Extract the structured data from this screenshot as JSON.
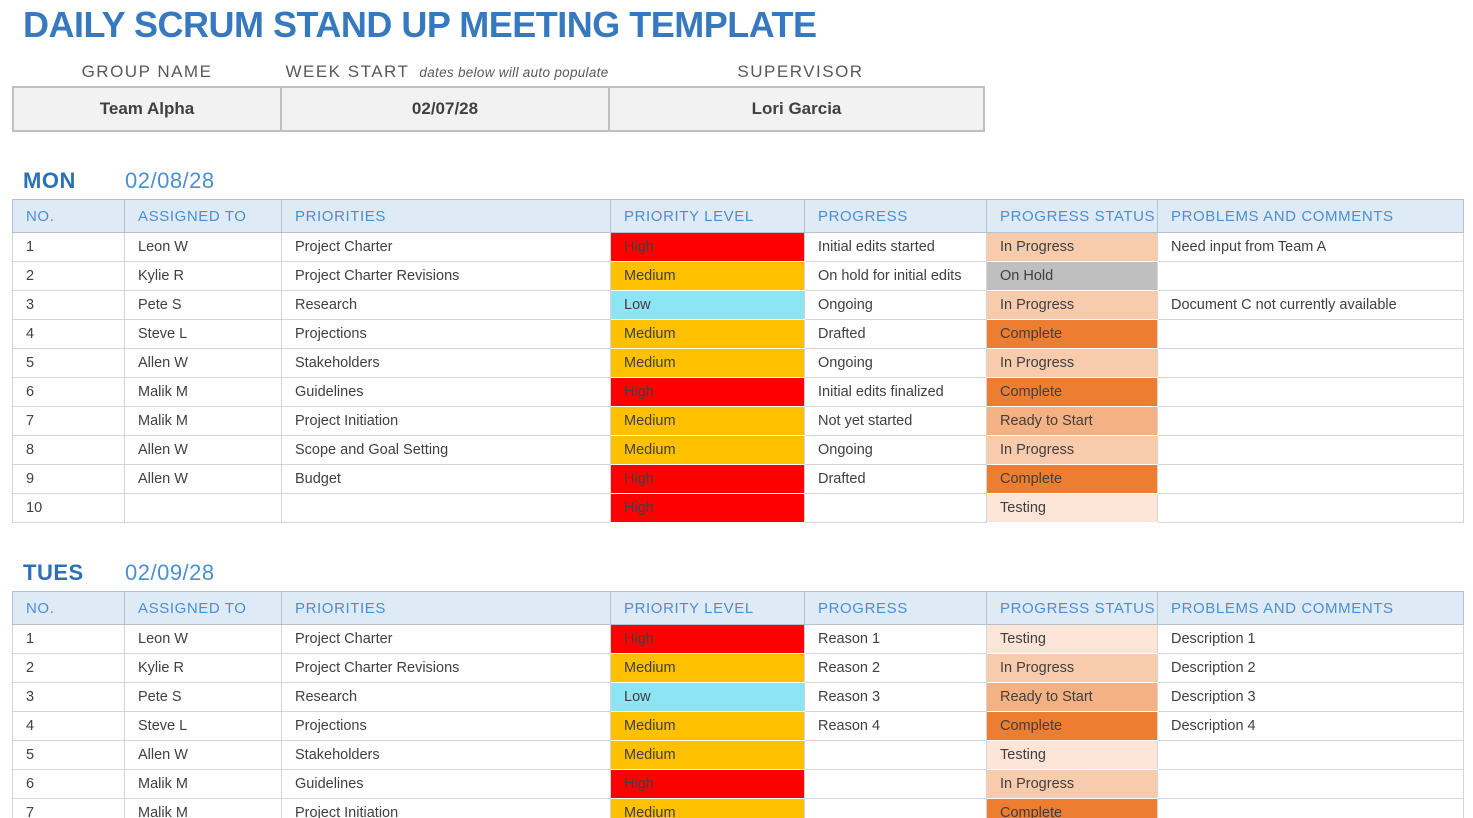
{
  "page": {
    "title": "DAILY SCRUM STAND UP MEETING TEMPLATE"
  },
  "info": {
    "group": {
      "label": "GROUP NAME",
      "value": "Team Alpha"
    },
    "week": {
      "label": "WEEK START",
      "note": "dates below will auto populate",
      "value": "02/07/28"
    },
    "supervisor": {
      "label": "SUPERVISOR",
      "value": "Lori Garcia"
    }
  },
  "columns": [
    "NO.",
    "ASSIGNED TO",
    "PRIORITIES",
    "PRIORITY LEVEL",
    "PROGRESS",
    "PROGRESS STATUS",
    "PROBLEMS AND COMMENTS"
  ],
  "colors": {
    "title_blue": "#3679BF",
    "day_name_blue": "#2C70B8",
    "day_date_blue": "#4A90D0",
    "table_header_bg": "#DEEAF6",
    "table_header_text": "#4A8FD3",
    "priority": {
      "High": "#FF0000",
      "Medium": "#FFC000",
      "Low": "#8DE4F2"
    },
    "status": {
      "In Progress": "#F8CBAD",
      "On Hold": "#BFBFBF",
      "Complete": "#ED7D31",
      "Ready to Start": "#F4B183",
      "Testing": "#FCE4D6"
    }
  },
  "days": [
    {
      "name": "MON",
      "date": "02/08/28",
      "rows": [
        {
          "no": "1",
          "assigned_to": "Leon W",
          "priorities": "Project Charter",
          "priority_level": "High",
          "progress": "Initial edits started",
          "progress_status": "In Progress",
          "problems_and_comments": "Need input from Team A"
        },
        {
          "no": "2",
          "assigned_to": "Kylie R",
          "priorities": "Project Charter Revisions",
          "priority_level": "Medium",
          "progress": "On hold for initial edits",
          "progress_status": "On Hold",
          "problems_and_comments": ""
        },
        {
          "no": "3",
          "assigned_to": "Pete S",
          "priorities": "Research",
          "priority_level": "Low",
          "progress": "Ongoing",
          "progress_status": "In Progress",
          "problems_and_comments": "Document C not currently available"
        },
        {
          "no": "4",
          "assigned_to": "Steve L",
          "priorities": "Projections",
          "priority_level": "Medium",
          "progress": "Drafted",
          "progress_status": "Complete",
          "problems_and_comments": ""
        },
        {
          "no": "5",
          "assigned_to": "Allen W",
          "priorities": "Stakeholders",
          "priority_level": "Medium",
          "progress": "Ongoing",
          "progress_status": "In Progress",
          "problems_and_comments": ""
        },
        {
          "no": "6",
          "assigned_to": "Malik M",
          "priorities": "Guidelines",
          "priority_level": "High",
          "progress": "Initial edits finalized",
          "progress_status": "Complete",
          "problems_and_comments": ""
        },
        {
          "no": "7",
          "assigned_to": "Malik M",
          "priorities": "Project Initiation",
          "priority_level": "Medium",
          "progress": "Not yet started",
          "progress_status": "Ready to Start",
          "problems_and_comments": ""
        },
        {
          "no": "8",
          "assigned_to": "Allen W",
          "priorities": "Scope and Goal Setting",
          "priority_level": "Medium",
          "progress": "Ongoing",
          "progress_status": "In Progress",
          "problems_and_comments": ""
        },
        {
          "no": "9",
          "assigned_to": "Allen W",
          "priorities": "Budget",
          "priority_level": "High",
          "progress": "Drafted",
          "progress_status": "Complete",
          "problems_and_comments": ""
        },
        {
          "no": "10",
          "assigned_to": "",
          "priorities": "",
          "priority_level": "High",
          "progress": "",
          "progress_status": "Testing",
          "problems_and_comments": ""
        }
      ]
    },
    {
      "name": "TUES",
      "date": "02/09/28",
      "rows": [
        {
          "no": "1",
          "assigned_to": "Leon W",
          "priorities": "Project Charter",
          "priority_level": "High",
          "progress": "Reason 1",
          "progress_status": "Testing",
          "problems_and_comments": "Description 1"
        },
        {
          "no": "2",
          "assigned_to": "Kylie R",
          "priorities": "Project Charter Revisions",
          "priority_level": "Medium",
          "progress": "Reason 2",
          "progress_status": "In Progress",
          "problems_and_comments": "Description 2"
        },
        {
          "no": "3",
          "assigned_to": "Pete S",
          "priorities": "Research",
          "priority_level": "Low",
          "progress": "Reason 3",
          "progress_status": "Ready to Start",
          "problems_and_comments": "Description 3"
        },
        {
          "no": "4",
          "assigned_to": "Steve L",
          "priorities": "Projections",
          "priority_level": "Medium",
          "progress": "Reason 4",
          "progress_status": "Complete",
          "problems_and_comments": "Description 4"
        },
        {
          "no": "5",
          "assigned_to": "Allen W",
          "priorities": "Stakeholders",
          "priority_level": "Medium",
          "progress": "",
          "progress_status": "Testing",
          "problems_and_comments": ""
        },
        {
          "no": "6",
          "assigned_to": "Malik M",
          "priorities": "Guidelines",
          "priority_level": "High",
          "progress": "",
          "progress_status": "In Progress",
          "problems_and_comments": ""
        },
        {
          "no": "7",
          "assigned_to": "Malik M",
          "priorities": "Project Initiation",
          "priority_level": "Medium",
          "progress": "",
          "progress_status": "Complete",
          "problems_and_comments": ""
        }
      ]
    }
  ]
}
